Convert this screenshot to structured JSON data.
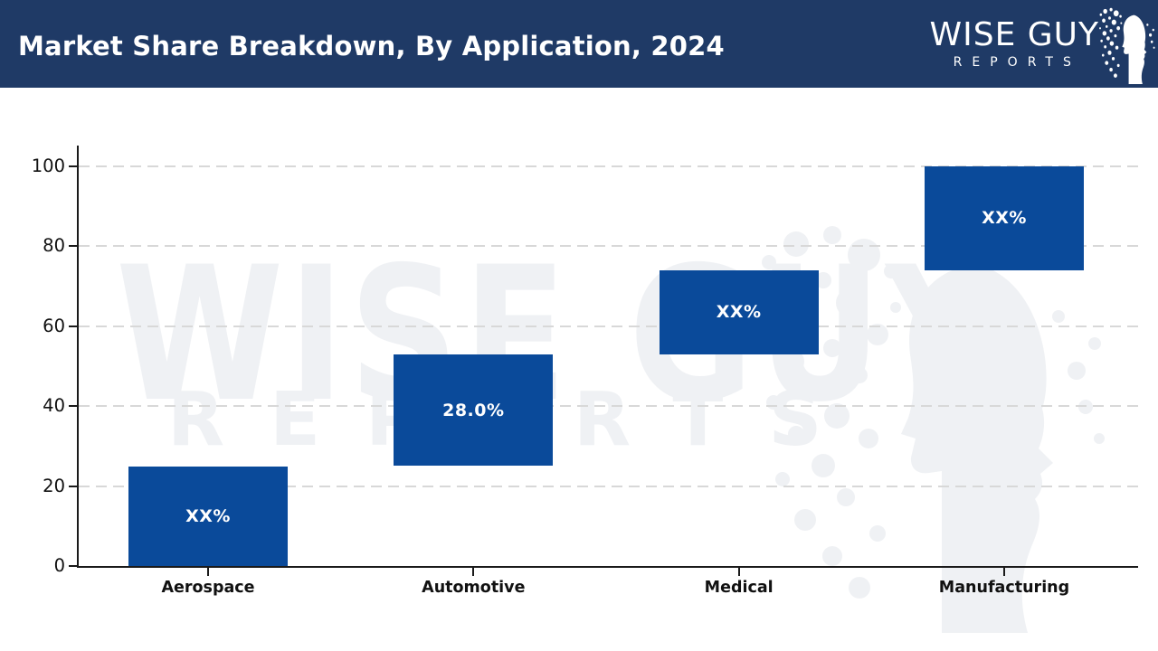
{
  "header": {
    "title": "Market Share Breakdown, By Application, 2024",
    "logo": {
      "wordmark": "WISE GUY",
      "subtitle": "REPORTS"
    }
  },
  "watermark": {
    "wordmark": "WISE GUY",
    "subtitle": "REPORTS"
  },
  "chart_data": {
    "type": "bar",
    "variant": "floating-segment-waterfall",
    "title": "Market Share Breakdown, By Application, 2024",
    "categories": [
      "Aerospace",
      "Automotive",
      "Medical",
      "Manufacturing"
    ],
    "bars": [
      {
        "category": "Aerospace",
        "start": 0,
        "end": 25,
        "label": "XX%"
      },
      {
        "category": "Automotive",
        "start": 25,
        "end": 53,
        "label": "28.0%"
      },
      {
        "category": "Medical",
        "start": 53,
        "end": 74,
        "label": "XX%"
      },
      {
        "category": "Manufacturing",
        "start": 74,
        "end": 100,
        "label": "XX%"
      }
    ],
    "xlabel": "",
    "ylabel": "",
    "ylim": [
      0,
      100
    ],
    "yticks": [
      0,
      20,
      40,
      60,
      80,
      100
    ],
    "grid": "horizontal-dashed",
    "legend_position": "none"
  },
  "colors": {
    "header_bg": "#1f3a66",
    "title_text": "#ffffff",
    "bar": "#0a4a9a",
    "bar_label": "#ffffff",
    "grid": "#d8d8d8",
    "axis": "#1a1a1a",
    "tick_text": "#111111",
    "watermark": "#eff1f4"
  }
}
